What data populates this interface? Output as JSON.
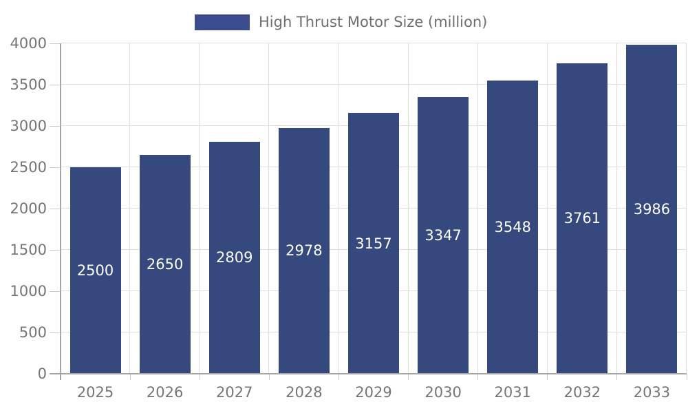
{
  "legend": {
    "label": "High Thrust Motor Size (million)"
  },
  "chart_data": {
    "type": "bar",
    "title": "High Thrust Motor Size (million)",
    "categories": [
      "2025",
      "2026",
      "2027",
      "2028",
      "2029",
      "2030",
      "2031",
      "2032",
      "2033"
    ],
    "values": [
      2500,
      2650,
      2809,
      2978,
      3157,
      3347,
      3548,
      3761,
      3986
    ],
    "series": [
      {
        "name": "High Thrust Motor Size (million)",
        "values": [
          2500,
          2650,
          2809,
          2978,
          3157,
          3347,
          3548,
          3761,
          3986
        ]
      }
    ],
    "xlabel": "",
    "ylabel": "",
    "ylim": [
      0,
      4000
    ],
    "y_ticks": [
      0,
      500,
      1000,
      1500,
      2000,
      2500,
      3000,
      3500,
      4000
    ],
    "grid": true,
    "legend_position": "top-center",
    "bar_color": "#36497E",
    "legend_swatch_color": "#3B4D8E",
    "bar_label_color": "#FFFFFF",
    "axis_label_color": "#757575",
    "legend_text_color": "#6E6E6E"
  }
}
